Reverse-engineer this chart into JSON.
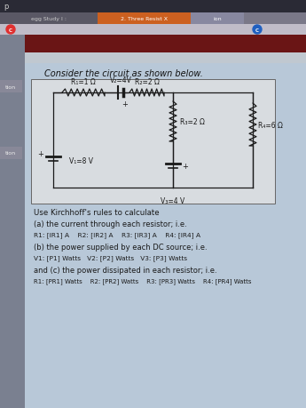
{
  "bg_page": "#9aa8b8",
  "bg_content": "#b8c4d0",
  "bg_circuit_area": "#c8d0d8",
  "bg_top_bar": "#3a2a2a",
  "bg_dark_band": "#5a2020",
  "bg_sidebar": "#7a8090",
  "sidebar_tab_color": "#6a7080",
  "tab_bar_color": "#888090",
  "title_text": "Consider the circuit as shown below.",
  "circuit": {
    "R1_label": "R₁=1 Ω",
    "V2_label": "V₂=4V",
    "R2_label": "R₂=2 Ω",
    "R3_label": "R₃=2 Ω",
    "R4_label": "R₄=6 Ω",
    "V1_label": "V₁=8 V",
    "V3_label": "V₃=4 V"
  },
  "instructions": "Use Kirchhoff's rules to calculate",
  "part_a_title": "(a) the current through each resistor; i.e.",
  "part_a_text": "R1: [IR1] A    R2: [IR2] A    R3: [IR3] A    R4: [IR4] A",
  "part_b_title": "(b) the power supplied by each DC source; i.e.",
  "part_b_text": "V1: [P1] Watts   V2: [P2] Watts   V3: [P3] Watts",
  "part_c_title": "and (c) the power dissipated in each resistor; i.e.",
  "part_c_text": "R1: [PR1] Watts    R2: [PR2] Watts    R3: [PR3] Watts    R4: [PR4] Watts",
  "wire_color": "#1a1a1a",
  "text_color": "#1a1a1a"
}
